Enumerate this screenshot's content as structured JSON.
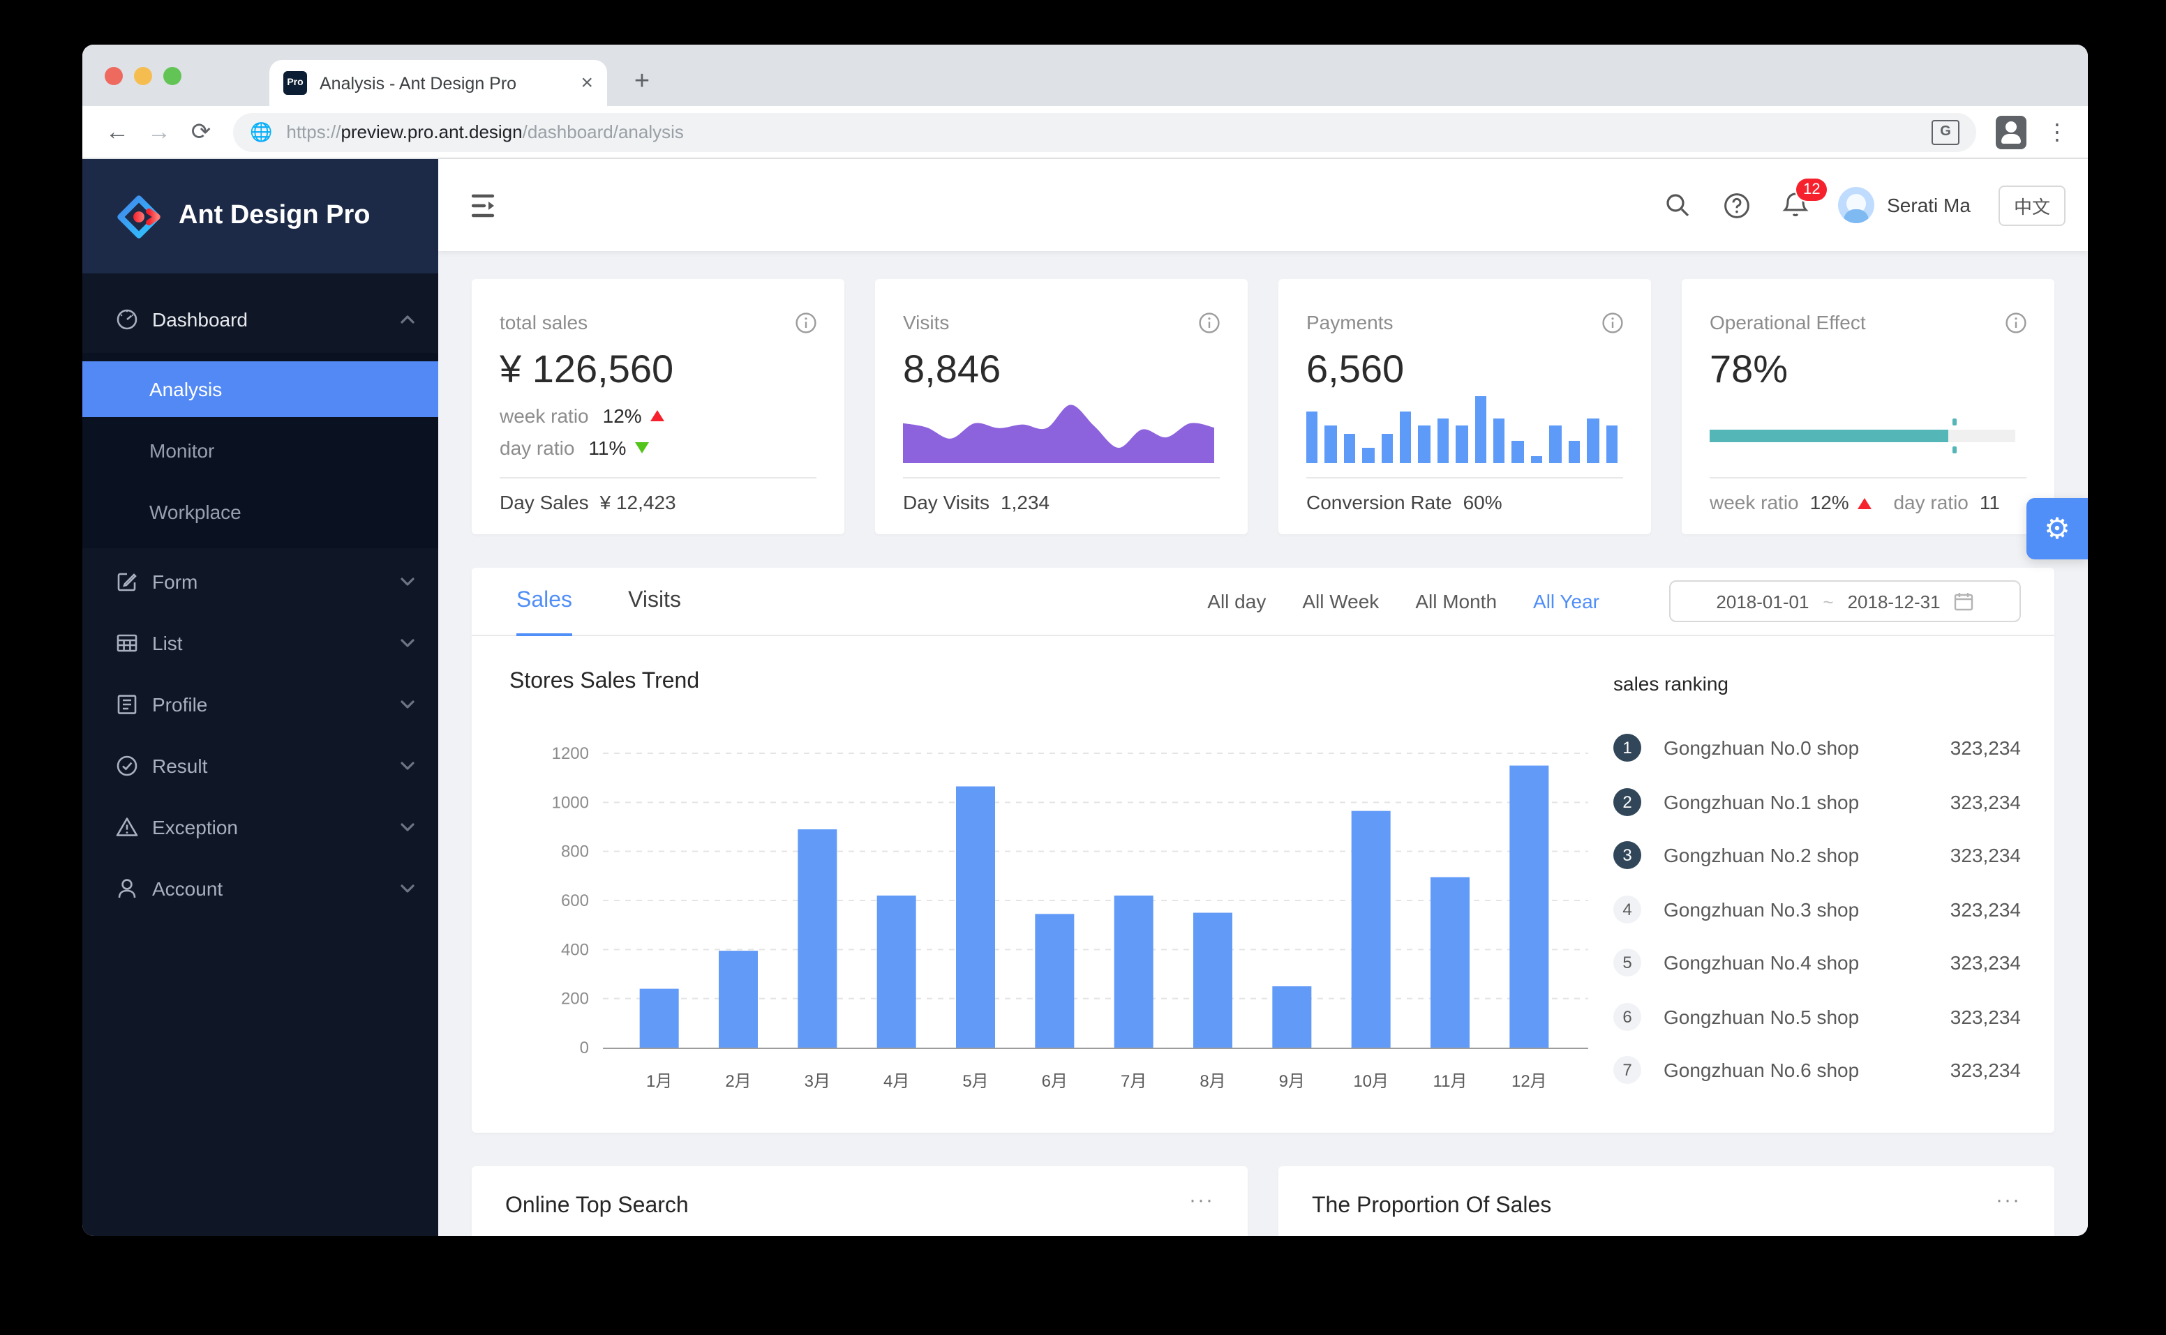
{
  "browser": {
    "tab_title": "Analysis - Ant Design Pro",
    "favicon_text": "Pro",
    "close_glyph": "×",
    "newtab_glyph": "+",
    "url_prefix": "https://",
    "url_domain": "preview.pro.ant.design",
    "url_path": "/dashboard/analysis"
  },
  "sidebar": {
    "logo_title": "Ant Design Pro",
    "items": [
      {
        "label": "Dashboard",
        "icon": "dashboard",
        "caret": "up",
        "kind": "top"
      },
      {
        "label": "Analysis",
        "kind": "sub",
        "selected": true
      },
      {
        "label": "Monitor",
        "kind": "sub"
      },
      {
        "label": "Workplace",
        "kind": "sub"
      },
      {
        "label": "Form",
        "icon": "form",
        "caret": "down",
        "kind": "top"
      },
      {
        "label": "List",
        "icon": "list",
        "caret": "down",
        "kind": "top"
      },
      {
        "label": "Profile",
        "icon": "profile",
        "caret": "down",
        "kind": "top"
      },
      {
        "label": "Result",
        "icon": "result",
        "caret": "down",
        "kind": "top"
      },
      {
        "label": "Exception",
        "icon": "exception",
        "caret": "down",
        "kind": "top"
      },
      {
        "label": "Account",
        "icon": "account",
        "caret": "down",
        "kind": "top"
      }
    ]
  },
  "header": {
    "badge_count": "12",
    "user_name": "Serati Ma",
    "lang_button": "中文"
  },
  "stats_cards": [
    {
      "title": "total sales",
      "value": "¥ 126,560",
      "ratios": [
        {
          "label": "week ratio",
          "value": "12%",
          "dir": "up"
        },
        {
          "label": "day ratio",
          "value": "11%",
          "dir": "down"
        }
      ],
      "footer_label": "Day Sales",
      "footer_value": "¥ 12,423"
    },
    {
      "title": "Visits",
      "value": "8,846",
      "footer_label": "Day Visits",
      "footer_value": "1,234"
    },
    {
      "title": "Payments",
      "value": "6,560",
      "footer_label": "Conversion Rate",
      "footer_value": "60%"
    },
    {
      "title": "Operational Effect",
      "value": "78%",
      "footer_ratios": [
        {
          "label": "week ratio",
          "value": "12%",
          "dir": "up"
        },
        {
          "label": "day ratio",
          "value": "11",
          "dir": "none"
        }
      ]
    }
  ],
  "tab_card": {
    "tabs": [
      {
        "label": "Sales",
        "active": true
      },
      {
        "label": "Visits",
        "active": false
      }
    ],
    "filters": [
      {
        "label": "All day",
        "active": false
      },
      {
        "label": "All Week",
        "active": false
      },
      {
        "label": "All Month",
        "active": false
      },
      {
        "label": "All Year",
        "active": true
      }
    ],
    "date_range": {
      "start": "2018-01-01",
      "separator": "~",
      "end": "2018-12-31"
    }
  },
  "chart_data": [
    {
      "type": "bar",
      "title": "Stores Sales Trend",
      "categories": [
        "1月",
        "2月",
        "3月",
        "4月",
        "5月",
        "6月",
        "7月",
        "8月",
        "9月",
        "10月",
        "11月",
        "12月"
      ],
      "values": [
        240,
        395,
        890,
        620,
        1065,
        545,
        620,
        550,
        250,
        965,
        695,
        1150
      ],
      "xlabel": "",
      "ylabel": "",
      "ylim": [
        0,
        1200
      ],
      "yticks": [
        0,
        200,
        400,
        600,
        800,
        1000,
        1200
      ],
      "grid": "dashed",
      "bar_color": "#629af8",
      "legend": "none"
    },
    {
      "type": "area",
      "title": "Visits mini trend",
      "values": [
        65,
        58,
        40,
        65,
        57,
        63,
        57,
        95,
        60,
        25,
        55,
        42,
        65,
        58
      ],
      "ylim": [
        0,
        100
      ],
      "color": "#8d62dd"
    },
    {
      "type": "bar",
      "title": "Payments mini bars",
      "values": [
        7,
        5,
        4,
        2,
        4,
        7,
        5,
        6,
        5,
        9,
        6,
        3,
        1,
        5,
        3,
        6,
        5
      ],
      "ylim": [
        0,
        9
      ],
      "bar_color": "#5e9bf8"
    },
    {
      "type": "progress",
      "title": "Operational Effect progress",
      "percent": 78,
      "target": 80,
      "color": "#55b6b8"
    }
  ],
  "sales_ranking": {
    "title": "sales ranking",
    "items": [
      {
        "rank": "1",
        "name": "Gongzhuan No.0 shop",
        "value": "323,234"
      },
      {
        "rank": "2",
        "name": "Gongzhuan No.1 shop",
        "value": "323,234"
      },
      {
        "rank": "3",
        "name": "Gongzhuan No.2 shop",
        "value": "323,234"
      },
      {
        "rank": "4",
        "name": "Gongzhuan No.3 shop",
        "value": "323,234"
      },
      {
        "rank": "5",
        "name": "Gongzhuan No.4 shop",
        "value": "323,234"
      },
      {
        "rank": "6",
        "name": "Gongzhuan No.5 shop",
        "value": "323,234"
      },
      {
        "rank": "7",
        "name": "Gongzhuan No.6 shop",
        "value": "323,234"
      }
    ]
  },
  "bottom_cards": [
    {
      "title": "Online Top Search",
      "menu": "···"
    },
    {
      "title": "The Proportion Of Sales",
      "menu": "···"
    }
  ],
  "colors": {
    "accent_blue": "#508ef8",
    "selected_menu": "#5289f5",
    "bar_blue": "#629af8",
    "area_purple": "#8d62dd",
    "progress_teal": "#55b6b8",
    "up_red": "#f5222d",
    "down_green": "#52c41a",
    "badge_red": "#f5222d",
    "sidebar_bg": "#0f1726",
    "logo_band_bg": "#1c2a47",
    "page_bg": "#f0f2f5"
  }
}
